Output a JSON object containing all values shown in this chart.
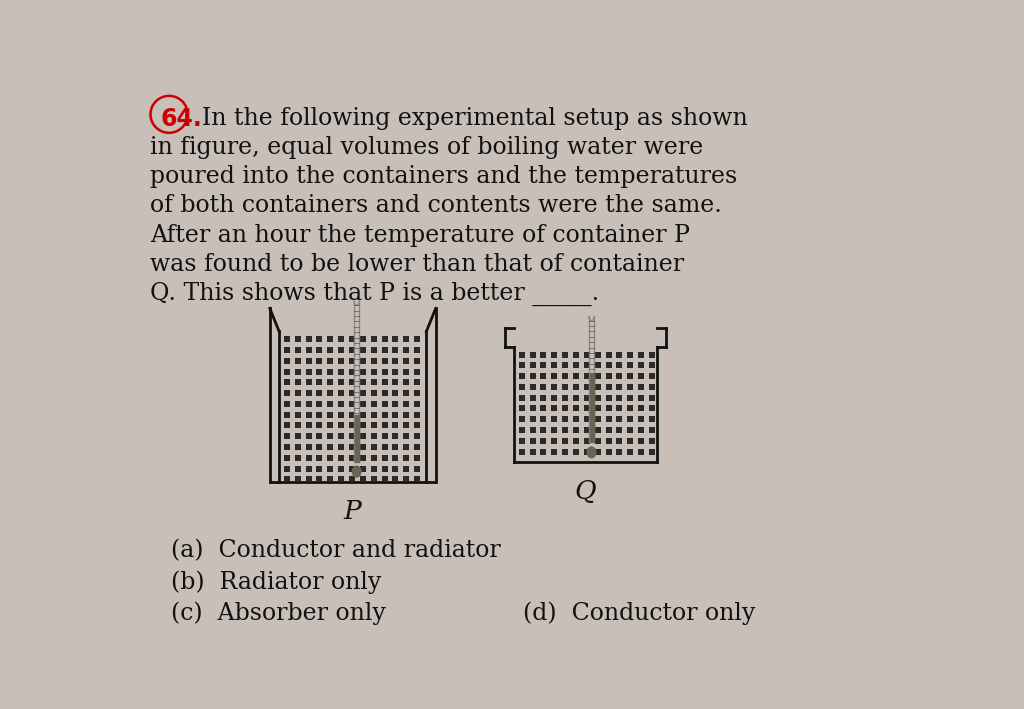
{
  "bg_color": "#c8c0b8",
  "text_color": "#111111",
  "question_number": "64.",
  "question_text_lines": [
    "In the following experimental setup as shown",
    "in figure, equal volumes of boiling water were",
    "poured into the containers and the temperatures",
    "of both containers and contents were the same.",
    "After an hour the temperature of container P",
    "was found to be lower than that of container",
    "Q. This shows that P is a better _____."
  ],
  "container_P_label": "P",
  "container_Q_label": "Q",
  "options_left": [
    "(a)  Conductor and radiator",
    "(b)  Radiator only",
    "(c)  Absorber only"
  ],
  "options_right": [
    "(d)  Conductor only"
  ],
  "dot_color": "#2a2a2a",
  "container_line_color": "#111111",
  "thermometer_tube_color": "#aaaaaa",
  "thermometer_mercury_color": "#555544",
  "thermometer_glass_color": "#ddddcc",
  "font_size_question": 17,
  "font_size_options": 17,
  "font_size_labels": 19,
  "font_size_number": 17
}
